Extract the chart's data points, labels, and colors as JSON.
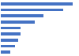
{
  "values": [
    1.0,
    0.87,
    0.6,
    0.47,
    0.28,
    0.27,
    0.24,
    0.2,
    0.13
  ],
  "bar_color": "#4472C4",
  "background_color": "#ffffff",
  "xlim": [
    0,
    1.08
  ]
}
